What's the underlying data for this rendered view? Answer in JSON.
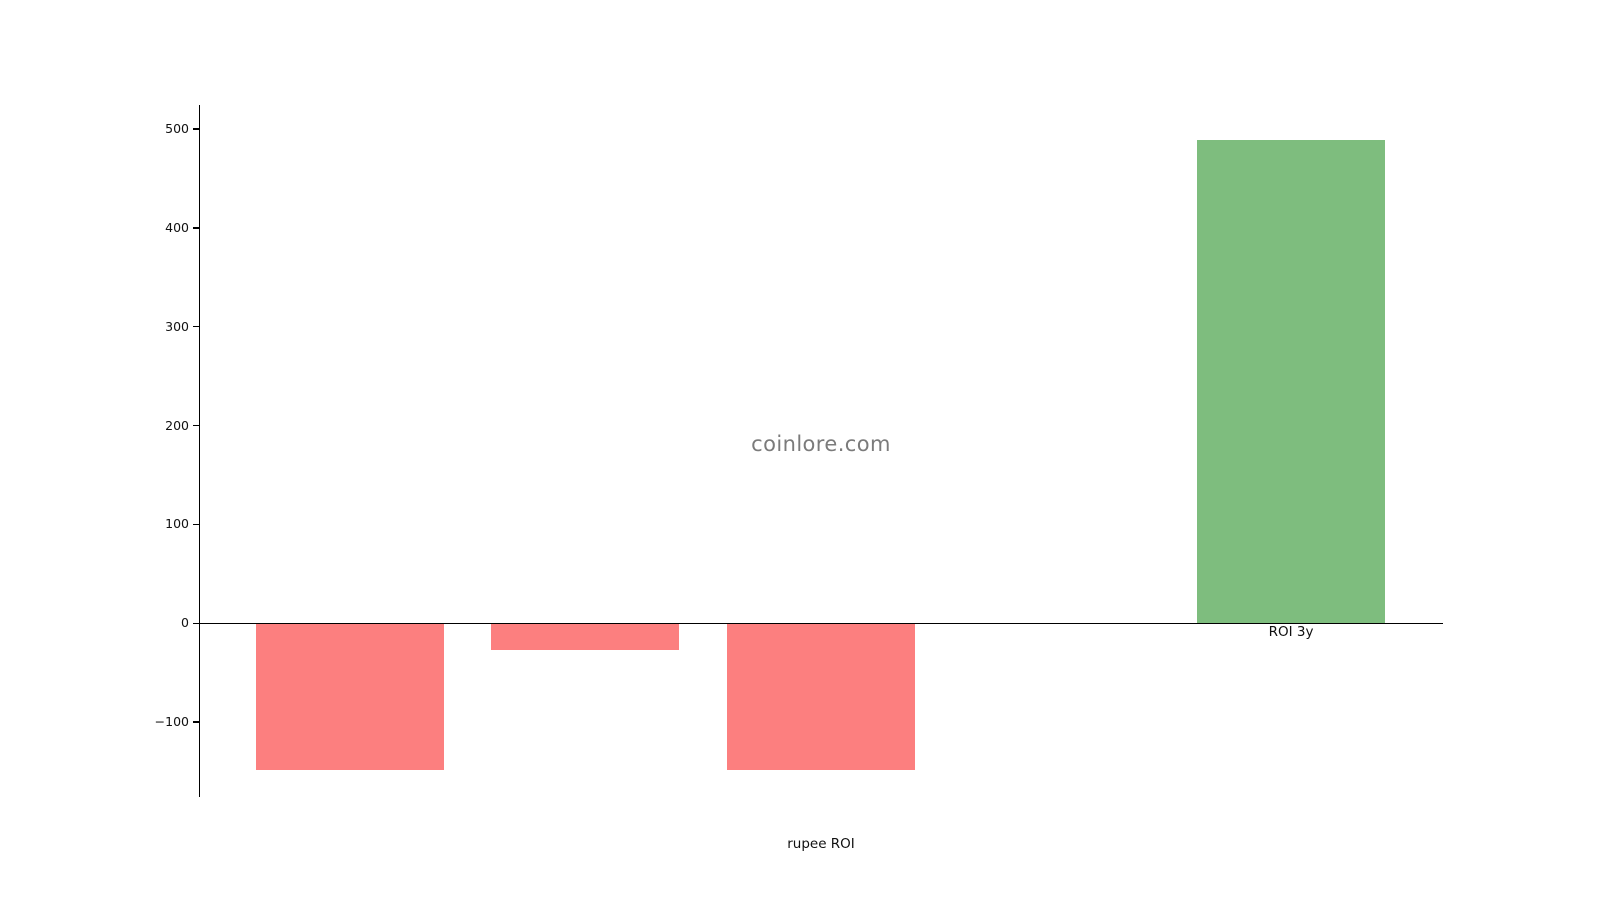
{
  "page": {
    "background": "#ffffff"
  },
  "chart_data": {
    "type": "bar",
    "title": "",
    "xlabel": "rupee ROI",
    "ylabel": "",
    "watermark": "coinlore.com",
    "categories": [
      "",
      "",
      "",
      "",
      "ROI 3y"
    ],
    "values": [
      -148,
      -27,
      -148,
      0,
      489
    ],
    "yticks": [
      500,
      400,
      300,
      200,
      100,
      0,
      -100
    ],
    "ylim": [
      -176,
      524
    ],
    "grid": false,
    "legend": false,
    "colors": {
      "negative_bar": "#fc7f7f",
      "positive_bar": "#7ebd7e",
      "axis": "#000000",
      "tick_text": "#111111",
      "watermark_text": "#7b7b7b"
    }
  }
}
